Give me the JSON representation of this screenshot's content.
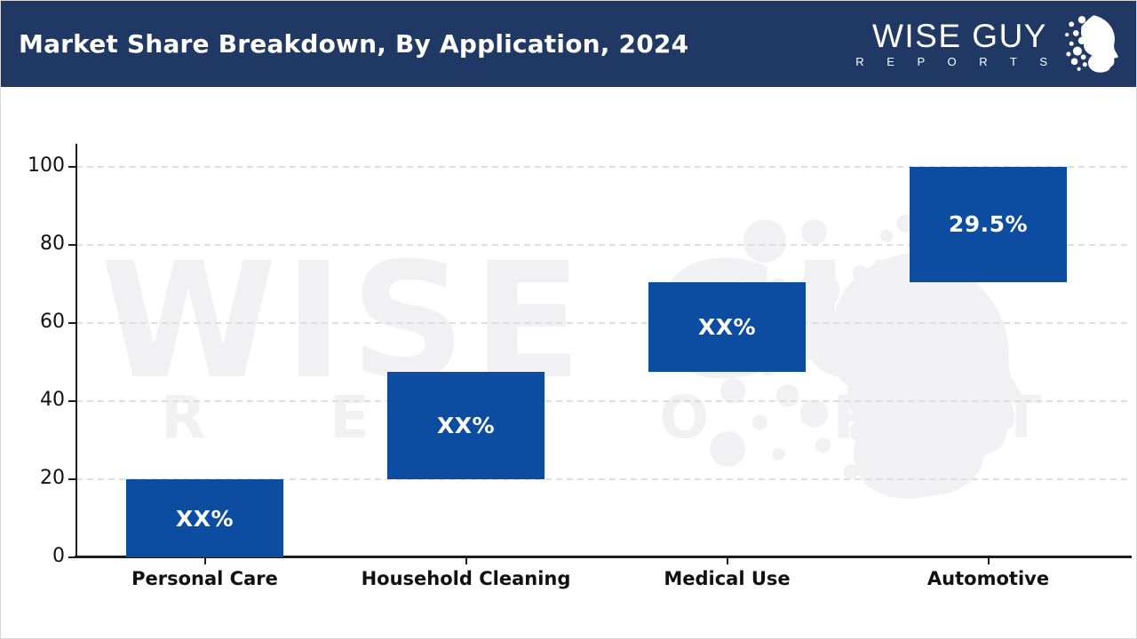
{
  "header": {
    "title": "Market Share Breakdown, By Application, 2024",
    "logo": {
      "name": "WISE GUY",
      "sub": "R E P O R T S"
    }
  },
  "watermark": {
    "text_main": "WISE GU",
    "text_sub": "R  E  P  O  R  T  S"
  },
  "chart_data": {
    "type": "bar",
    "variant": "waterfall",
    "title": "Market Share Breakdown, By Application, 2024",
    "categories": [
      "Personal Care",
      "Household Cleaning",
      "Medical Use",
      "Automotive"
    ],
    "segments": [
      {
        "category": "Personal Care",
        "start": 0,
        "end": 20,
        "value": 20,
        "label": "XX%"
      },
      {
        "category": "Household Cleaning",
        "start": 20,
        "end": 47.5,
        "value": 27.5,
        "label": "XX%"
      },
      {
        "category": "Medical Use",
        "start": 47.5,
        "end": 70.5,
        "value": 23,
        "label": "XX%"
      },
      {
        "category": "Automotive",
        "start": 70.5,
        "end": 100,
        "value": 29.5,
        "label": "29.5%"
      }
    ],
    "bar_labels": [
      "XX%",
      "XX%",
      "XX%",
      "29.5%"
    ],
    "xlabel": "",
    "ylabel": "",
    "yticks": [
      0,
      20,
      40,
      60,
      80,
      100
    ],
    "ylim": [
      0,
      106
    ],
    "grid": "horizontal-dashed",
    "legend": "none",
    "bar_color": "#0d4da1",
    "bar_label_color": "#ffffff"
  },
  "colors": {
    "header_bg": "#1f3864",
    "bar": "#0d4da1",
    "axis": "#1c1c1c",
    "grid": "#dedede",
    "watermark": "#f1f1f3",
    "text": "#111111",
    "page_border": "#d8d8d8"
  }
}
